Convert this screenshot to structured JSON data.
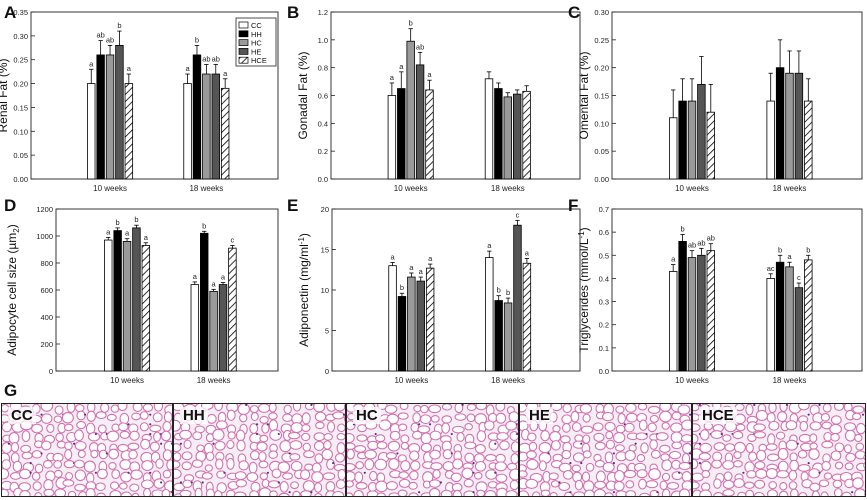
{
  "figure": {
    "panels": [
      "A",
      "B",
      "C",
      "D",
      "E",
      "F"
    ],
    "histology_label": "G"
  },
  "legend": {
    "entries": [
      "CC",
      "HH",
      "HC",
      "HE",
      "HCE"
    ]
  },
  "histology": {
    "panels": [
      {
        "label": "CC"
      },
      {
        "label": "HH"
      },
      {
        "label": "HC"
      },
      {
        "label": "HE"
      },
      {
        "label": "HCE"
      }
    ]
  },
  "chart_data": [
    {
      "panel": "A",
      "type": "bar",
      "ylabel": "Renal Fat (%)",
      "categories": [
        "10 weeks",
        "18 weeks"
      ],
      "ylim": [
        0,
        0.35
      ],
      "yticks": [
        "0.00",
        "0.05",
        "0.10",
        "0.15",
        "0.20",
        "0.25",
        "0.30",
        "0.35"
      ],
      "series": [
        {
          "name": "CC",
          "values": [
            0.2,
            0.2
          ],
          "errors": [
            0.03,
            0.02
          ],
          "letters": [
            "a",
            "a"
          ]
        },
        {
          "name": "HH",
          "values": [
            0.26,
            0.26
          ],
          "errors": [
            0.03,
            0.02
          ],
          "letters": [
            "ab",
            "b"
          ]
        },
        {
          "name": "HC",
          "values": [
            0.26,
            0.22
          ],
          "errors": [
            0.02,
            0.02
          ],
          "letters": [
            "ab",
            "ab"
          ]
        },
        {
          "name": "HE",
          "values": [
            0.28,
            0.22
          ],
          "errors": [
            0.03,
            0.02
          ],
          "letters": [
            "b",
            "ab"
          ]
        },
        {
          "name": "HCE",
          "values": [
            0.2,
            0.19
          ],
          "errors": [
            0.02,
            0.02
          ],
          "letters": [
            "a",
            "a"
          ]
        }
      ]
    },
    {
      "panel": "B",
      "type": "bar",
      "ylabel": "Gonadal Fat (%)",
      "categories": [
        "10 weeks",
        "18 weeks"
      ],
      "ylim": [
        0,
        1.2
      ],
      "yticks": [
        "0.0",
        "0.2",
        "0.4",
        "0.6",
        "0.8",
        "1.0",
        "1.2"
      ],
      "series": [
        {
          "name": "CC",
          "values": [
            0.6,
            0.72
          ],
          "errors": [
            0.09,
            0.05
          ],
          "letters": [
            "a",
            ""
          ]
        },
        {
          "name": "HH",
          "values": [
            0.65,
            0.65
          ],
          "errors": [
            0.12,
            0.04
          ],
          "letters": [
            "a",
            ""
          ]
        },
        {
          "name": "HC",
          "values": [
            0.99,
            0.59
          ],
          "errors": [
            0.09,
            0.03
          ],
          "letters": [
            "b",
            ""
          ]
        },
        {
          "name": "HE",
          "values": [
            0.82,
            0.61
          ],
          "errors": [
            0.09,
            0.03
          ],
          "letters": [
            "ab",
            ""
          ]
        },
        {
          "name": "HCE",
          "values": [
            0.64,
            0.63
          ],
          "errors": [
            0.07,
            0.04
          ],
          "letters": [
            "a",
            ""
          ]
        }
      ]
    },
    {
      "panel": "C",
      "type": "bar",
      "ylabel": "Omental Fat (%)",
      "categories": [
        "10 weeks",
        "18 weeks"
      ],
      "ylim": [
        0,
        0.3
      ],
      "yticks": [
        "0.00",
        "0.05",
        "0.10",
        "0.15",
        "0.20",
        "0.25",
        "0.30"
      ],
      "series": [
        {
          "name": "CC",
          "values": [
            0.11,
            0.14
          ],
          "errors": [
            0.05,
            0.05
          ],
          "letters": [
            "",
            ""
          ]
        },
        {
          "name": "HH",
          "values": [
            0.14,
            0.2
          ],
          "errors": [
            0.04,
            0.05
          ],
          "letters": [
            "",
            ""
          ]
        },
        {
          "name": "HC",
          "values": [
            0.14,
            0.19
          ],
          "errors": [
            0.04,
            0.04
          ],
          "letters": [
            "",
            ""
          ]
        },
        {
          "name": "HE",
          "values": [
            0.17,
            0.19
          ],
          "errors": [
            0.05,
            0.04
          ],
          "letters": [
            "",
            ""
          ]
        },
        {
          "name": "HCE",
          "values": [
            0.12,
            0.14
          ],
          "errors": [
            0.05,
            0.04
          ],
          "letters": [
            "",
            ""
          ]
        }
      ]
    },
    {
      "panel": "D",
      "type": "bar",
      "ylabel": "Adipocyte cell size (µm2)",
      "ylabel_main": "Adipocyte cell size (µm",
      "ylabel_sub": "2",
      "ylabel_end": ")",
      "categories": [
        "10 weeks",
        "18 weeks"
      ],
      "ylim": [
        0,
        1200
      ],
      "yticks": [
        "0",
        "200",
        "400",
        "600",
        "800",
        "1000",
        "1200"
      ],
      "series": [
        {
          "name": "CC",
          "values": [
            970,
            640
          ],
          "errors": [
            20,
            20
          ],
          "letters": [
            "a",
            "a"
          ]
        },
        {
          "name": "HH",
          "values": [
            1040,
            1020
          ],
          "errors": [
            20,
            15
          ],
          "letters": [
            "b",
            "b"
          ]
        },
        {
          "name": "HC",
          "values": [
            960,
            590
          ],
          "errors": [
            20,
            15
          ],
          "letters": [
            "a",
            "a"
          ]
        },
        {
          "name": "HE",
          "values": [
            1060,
            640
          ],
          "errors": [
            20,
            15
          ],
          "letters": [
            "b",
            "a"
          ]
        },
        {
          "name": "HCE",
          "values": [
            930,
            910
          ],
          "errors": [
            20,
            20
          ],
          "letters": [
            "a",
            "c"
          ]
        }
      ]
    },
    {
      "panel": "E",
      "type": "bar",
      "ylabel": "Adiponectin (mg/ml-1)",
      "ylabel_main": "Adiponectin (mg/ml",
      "ylabel_sup": "-1",
      "ylabel_end": ")",
      "categories": [
        "10 weeks",
        "18 weeks"
      ],
      "ylim": [
        0,
        20
      ],
      "yticks": [
        "0",
        "5",
        "10",
        "15",
        "20"
      ],
      "series": [
        {
          "name": "CC",
          "values": [
            13.0,
            14.0
          ],
          "errors": [
            0.4,
            0.8
          ],
          "letters": [
            "a",
            "a"
          ]
        },
        {
          "name": "HH",
          "values": [
            9.2,
            8.7
          ],
          "errors": [
            0.4,
            0.6
          ],
          "letters": [
            "b",
            "b"
          ]
        },
        {
          "name": "HC",
          "values": [
            11.6,
            8.4
          ],
          "errors": [
            0.5,
            0.6
          ],
          "letters": [
            "a",
            "b"
          ]
        },
        {
          "name": "HE",
          "values": [
            11.1,
            18.0
          ],
          "errors": [
            0.5,
            0.6
          ],
          "letters": [
            "a",
            "c"
          ]
        },
        {
          "name": "HCE",
          "values": [
            12.7,
            13.3
          ],
          "errors": [
            0.5,
            0.6
          ],
          "letters": [
            "a",
            "a"
          ]
        }
      ]
    },
    {
      "panel": "F",
      "type": "bar",
      "ylabel": "Triglycerides (mmol/L-1)",
      "ylabel_main": "Triglycerides (mmol/L",
      "ylabel_sup": "-1",
      "ylabel_end": ")",
      "categories": [
        "10 weeks",
        "18 weeks"
      ],
      "ylim": [
        0,
        0.7
      ],
      "yticks": [
        "0.0",
        "0.1",
        "0.2",
        "0.3",
        "0.4",
        "0.5",
        "0.6",
        "0.7"
      ],
      "series": [
        {
          "name": "CC",
          "values": [
            0.43,
            0.4
          ],
          "errors": [
            0.03,
            0.02
          ],
          "letters": [
            "a",
            "ac"
          ]
        },
        {
          "name": "HH",
          "values": [
            0.56,
            0.47
          ],
          "errors": [
            0.03,
            0.03
          ],
          "letters": [
            "b",
            "b"
          ]
        },
        {
          "name": "HC",
          "values": [
            0.49,
            0.45
          ],
          "errors": [
            0.03,
            0.02
          ],
          "letters": [
            "ab",
            "a"
          ]
        },
        {
          "name": "HE",
          "values": [
            0.5,
            0.36
          ],
          "errors": [
            0.03,
            0.02
          ],
          "letters": [
            "ab",
            "c"
          ]
        },
        {
          "name": "HCE",
          "values": [
            0.52,
            0.48
          ],
          "errors": [
            0.03,
            0.02
          ],
          "letters": [
            "ab",
            "b"
          ]
        }
      ]
    }
  ],
  "colors": {
    "CC": "#ffffff",
    "HH": "#000000",
    "HC": "#9a9a9a",
    "HE": "#555555",
    "HCE": "hatch",
    "tissue_bg": "#f6eef5",
    "tissue_stain": "#d46fb1",
    "nuclei": "#5b2a86"
  }
}
